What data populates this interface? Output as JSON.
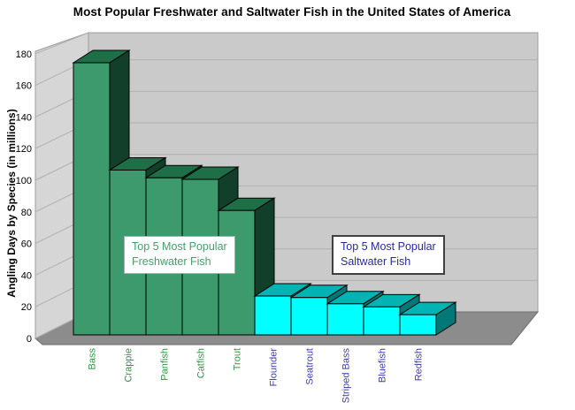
{
  "title": "Most Popular Freshwater and Saltwater Fish in the United States of America",
  "y_axis": {
    "label": "Angling Days by Species (in millions)",
    "ticks": [
      0,
      20,
      40,
      60,
      80,
      100,
      120,
      140,
      160,
      180
    ]
  },
  "annotations": {
    "freshwater": {
      "line1": "Top 5 Most Popular",
      "line2": "Freshwater Fish",
      "text_color": "#44A069",
      "border_color": "#AAAAAA"
    },
    "saltwater": {
      "line1": "Top 5 Most Popular",
      "line2": "Saltwater Fish",
      "text_color": "#2A2AA0",
      "border_color": "#404040"
    }
  },
  "chart_data": {
    "type": "bar",
    "projection": "3d",
    "title": "Most Popular Freshwater and Saltwater Fish in the United States of America",
    "xlabel": "",
    "ylabel": "Angling Days by Species (in millions)",
    "ylim": [
      0,
      190
    ],
    "grid": true,
    "legend_position": "none",
    "categories": [
      "Bass",
      "Crappie",
      "Panfish",
      "Catfish",
      "Trout",
      "Flounder",
      "Seatrout",
      "Striped Bass",
      "Bluefish",
      "Redfish"
    ],
    "values": [
      175,
      106,
      101,
      100,
      80,
      25,
      24,
      20,
      18,
      13
    ],
    "groups": [
      "freshwater",
      "freshwater",
      "freshwater",
      "freshwater",
      "freshwater",
      "saltwater",
      "saltwater",
      "saltwater",
      "saltwater",
      "saltwater"
    ],
    "series_colors": {
      "freshwater": {
        "front": "#3C9A6C",
        "top": "#1E6E48",
        "side": "#123F2A",
        "label": "#2F9646"
      },
      "saltwater": {
        "front": "#00FFFF",
        "top": "#00B4B4",
        "side": "#007878",
        "label": "#3C3CAA"
      }
    },
    "wall_colors": {
      "back": "#CACACA",
      "left": "#D6D6D6",
      "floor": "#8C8C8C",
      "gridline": "#B0B0B0"
    }
  }
}
